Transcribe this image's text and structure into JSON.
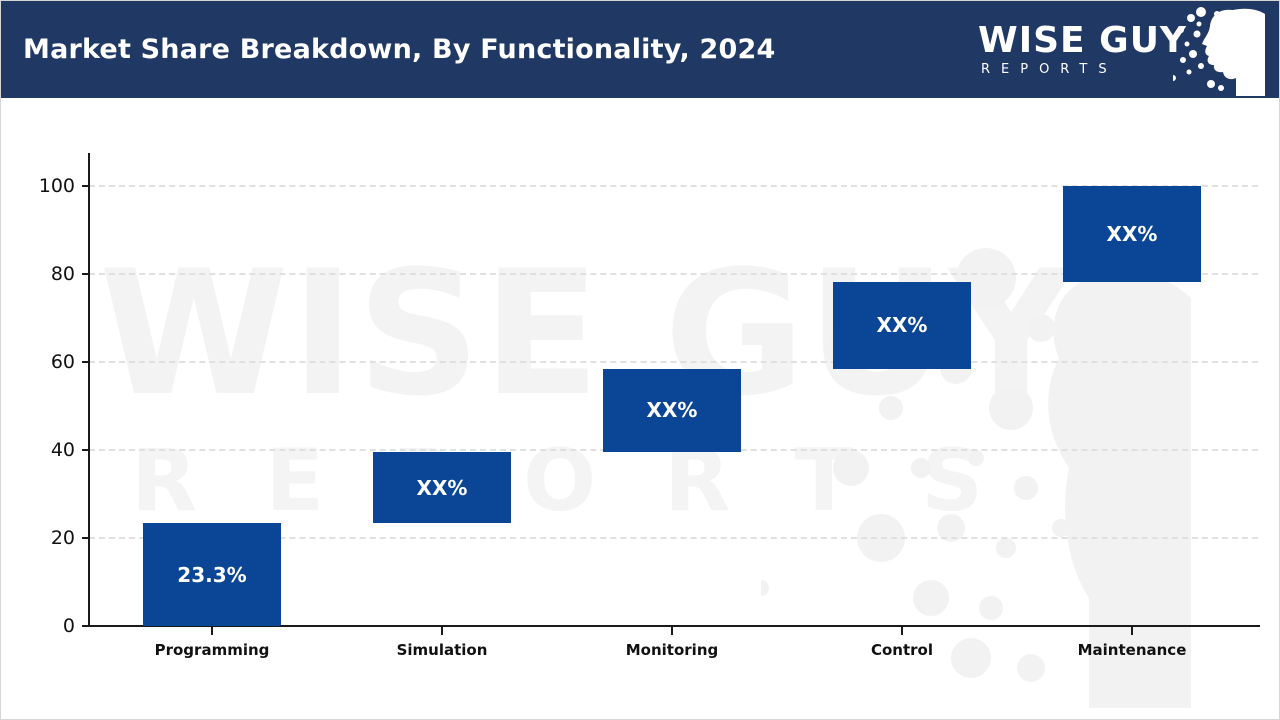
{
  "page": {
    "header": {
      "title": "Market Share Breakdown, By Functionality, 2024",
      "logo": {
        "line1": "WISE GUY",
        "line2": "REPORTS"
      }
    },
    "watermark": {
      "line1": "WISE GUY",
      "line2": "REPORTS"
    },
    "colors": {
      "header_bg": "#203864",
      "bar": "#0a4596",
      "grid": "#e0e0e0",
      "axis": "#1a1a1a",
      "bar_label_text": "#ffffff",
      "watermark": "#f3f3f3"
    }
  },
  "chart_data": {
    "type": "bar",
    "subtype": "waterfall",
    "title": "Market Share Breakdown, By Functionality, 2024",
    "categories": [
      "Programming",
      "Simulation",
      "Monitoring",
      "Control",
      "Maintenance"
    ],
    "series": [
      {
        "name": "Market Share",
        "segments": [
          {
            "category": "Programming",
            "start": 0,
            "end": 23.3,
            "label": "23.3%"
          },
          {
            "category": "Simulation",
            "start": 23.3,
            "end": 39.6,
            "label": "XX%"
          },
          {
            "category": "Monitoring",
            "start": 39.6,
            "end": 58.5,
            "label": "XX%"
          },
          {
            "category": "Control",
            "start": 58.5,
            "end": 78.1,
            "label": "XX%"
          },
          {
            "category": "Maintenance",
            "start": 78.1,
            "end": 100,
            "label": "XX%"
          }
        ]
      }
    ],
    "xlabel": "",
    "ylabel": "",
    "ylim": [
      0,
      105
    ],
    "yticks": [
      0,
      20,
      40,
      60,
      80,
      100
    ],
    "grid": "horizontal-dashed",
    "legend": "none"
  }
}
